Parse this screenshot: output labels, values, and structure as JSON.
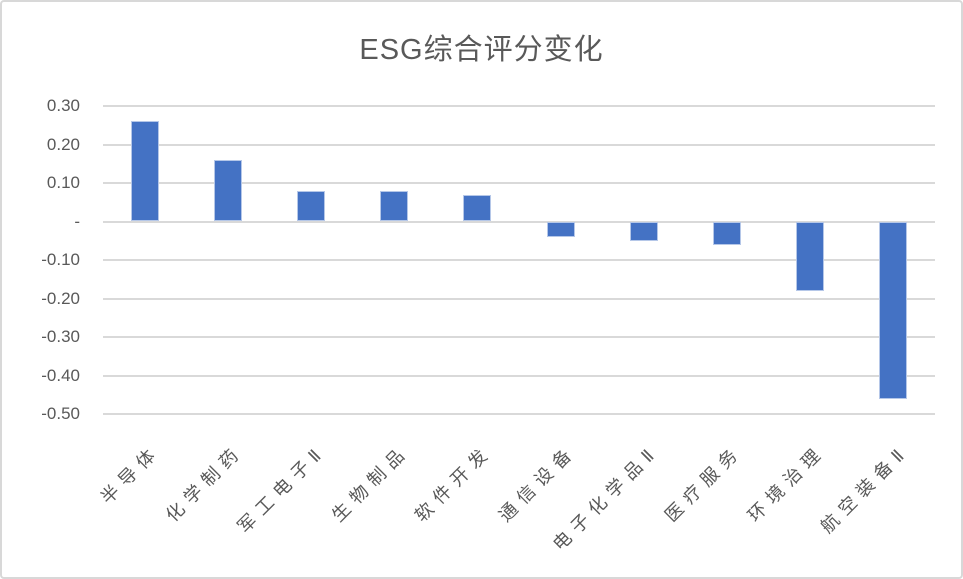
{
  "chart_data": {
    "type": "bar",
    "title": "ESG综合评分变化",
    "categories": [
      "半导体",
      "化学制药",
      "军工电子Ⅱ",
      "生物制品",
      "软件开发",
      "通信设备",
      "电子化学品Ⅱ",
      "医疗服务",
      "环境治理",
      "航空装备Ⅱ"
    ],
    "values": [
      0.26,
      0.16,
      0.08,
      0.08,
      0.07,
      -0.04,
      -0.05,
      -0.06,
      -0.18,
      -0.46
    ],
    "xlabel": "",
    "ylabel": "",
    "ylim": [
      -0.5,
      0.3
    ],
    "grid": true,
    "legend": false,
    "y_ticks": [
      {
        "label": "0.30",
        "value": 0.3
      },
      {
        "label": "0.20",
        "value": 0.2
      },
      {
        "label": "0.10",
        "value": 0.1
      },
      {
        "label": "-",
        "value": 0.0
      },
      {
        "label": "-0.10",
        "value": -0.1
      },
      {
        "label": "-0.20",
        "value": -0.2
      },
      {
        "label": "-0.30",
        "value": -0.3
      },
      {
        "label": "-0.40",
        "value": -0.4
      },
      {
        "label": "-0.50",
        "value": -0.5
      }
    ],
    "colors": {
      "bar_fill": "#4472C4",
      "bar_border": "#B5C7E8",
      "gridline": "#D9D9D9",
      "text": "#595959",
      "frame_border": "#D8D8D8"
    }
  }
}
